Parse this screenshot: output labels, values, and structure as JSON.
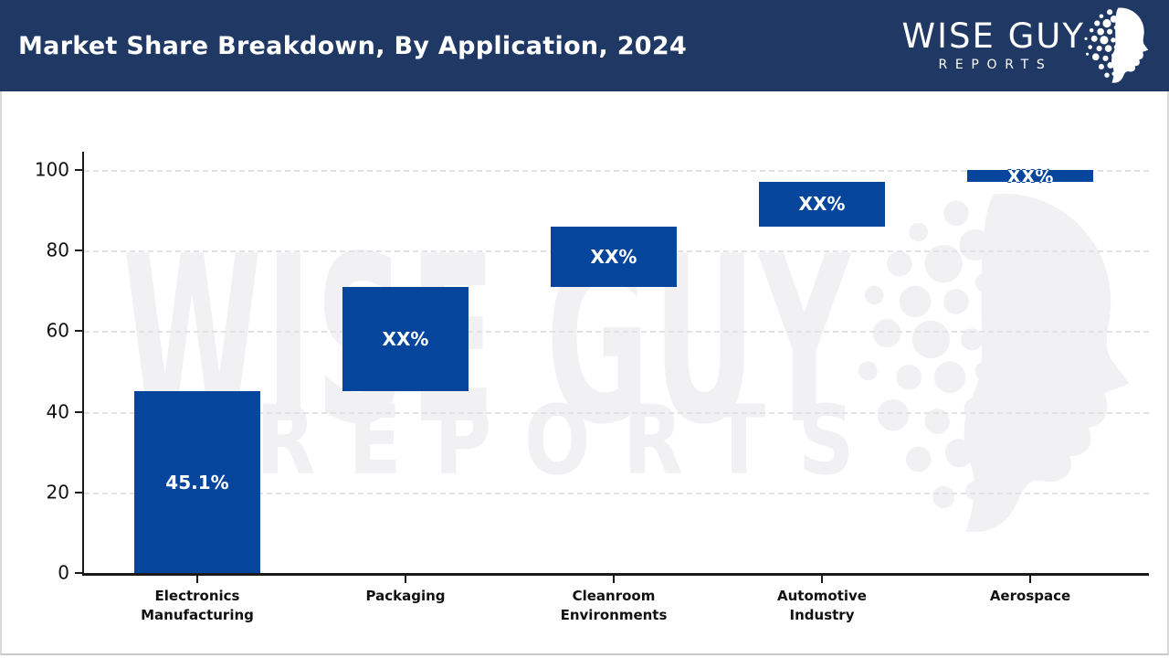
{
  "header": {
    "title": "Market Share Breakdown, By Application, 2024",
    "bg_color": "#1f3864",
    "logo": {
      "word": "WISE GUY",
      "sub": "REPORTS"
    }
  },
  "watermark": {
    "line1": "WISE GUY",
    "line2": "REPORTS"
  },
  "chart_data": {
    "type": "bar",
    "subtype": "floating-waterfall",
    "title": "Market Share Breakdown, By Application, 2024",
    "xlabel": "",
    "ylabel": "",
    "categories": [
      "Electronics Manufacturing",
      "Packaging",
      "Cleanroom Environments",
      "Automotive Industry",
      "Aerospace"
    ],
    "category_label_lines": [
      [
        "Electronics",
        "Manufacturing"
      ],
      [
        "Packaging"
      ],
      [
        "Cleanroom",
        "Environments"
      ],
      [
        "Automotive",
        "Industry"
      ],
      [
        "Aerospace"
      ]
    ],
    "segments": [
      {
        "category": "Electronics Manufacturing",
        "start": 0,
        "end": 45.1,
        "label": "45.1%"
      },
      {
        "category": "Packaging",
        "start": 45.1,
        "end": 71,
        "label": "XX%"
      },
      {
        "category": "Cleanroom Environments",
        "start": 71,
        "end": 86,
        "label": "XX%"
      },
      {
        "category": "Automotive Industry",
        "start": 86,
        "end": 97,
        "label": "XX%"
      },
      {
        "category": "Aerospace",
        "start": 97,
        "end": 100,
        "label": "XX%"
      }
    ],
    "yticks": [
      0,
      20,
      40,
      60,
      80,
      100
    ],
    "ylim": [
      0,
      105
    ],
    "bar_color": "#05459c",
    "label_color": "#ffffff",
    "grid": {
      "horizontal": true,
      "style": "dashed",
      "color": "#e3e3e3"
    },
    "legend_position": "none"
  }
}
